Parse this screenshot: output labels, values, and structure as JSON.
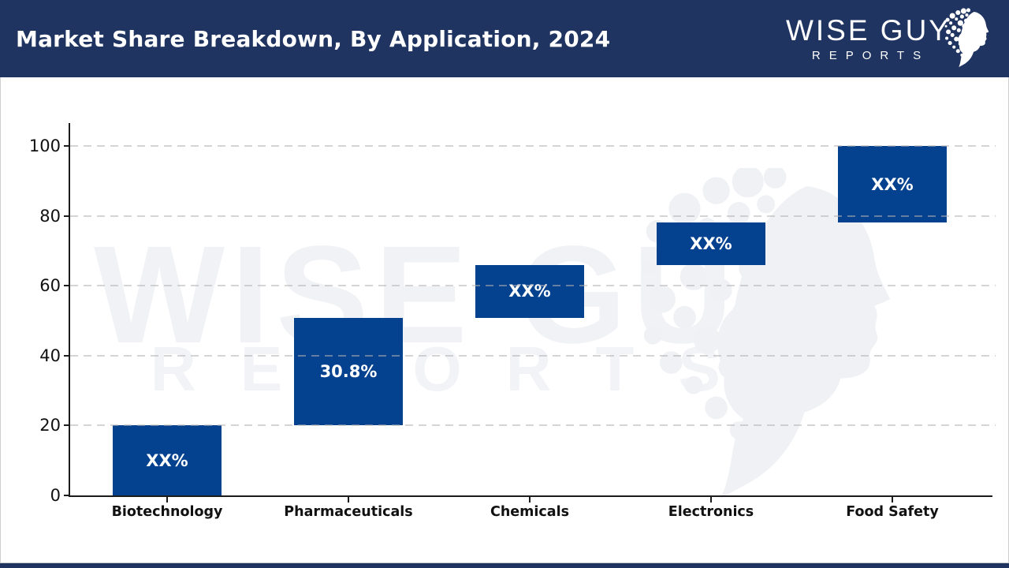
{
  "header": {
    "title": "Market Share Breakdown, By Application, 2024",
    "logo": {
      "name": "WISE GUY",
      "tagline": "REPORTS"
    }
  },
  "watermark": {
    "line1": "WISE GUY",
    "line2": "REPORTS"
  },
  "chart_data": {
    "type": "bar",
    "subtype": "floating-waterfall",
    "title": "Market Share Breakdown, By Application, 2024",
    "categories": [
      "Biotechnology",
      "Pharmaceuticals",
      "Chemicals",
      "Electronics",
      "Food Safety"
    ],
    "series": [
      {
        "name": "Market Share (%)",
        "segments": [
          {
            "category": "Biotechnology",
            "start": 0,
            "end": 20,
            "label": "XX%"
          },
          {
            "category": "Pharmaceuticals",
            "start": 20,
            "end": 50.8,
            "label": "30.8%"
          },
          {
            "category": "Chemicals",
            "start": 50.8,
            "end": 66,
            "label": "XX%"
          },
          {
            "category": "Electronics",
            "start": 66,
            "end": 78,
            "label": "XX%"
          },
          {
            "category": "Food Safety",
            "start": 78,
            "end": 100,
            "label": "XX%"
          }
        ]
      }
    ],
    "xlabel": "",
    "ylabel": "",
    "ylim": [
      0,
      100
    ],
    "yticks": [
      0,
      20,
      40,
      60,
      80,
      100
    ],
    "grid": "horizontal-dashed",
    "legend": "none"
  },
  "colors": {
    "header_bg": "#1f3461",
    "footer_bg": "#1f3461",
    "bar": "#04418f",
    "bar_label": "#ffffff",
    "grid": "#d9d9d9",
    "axis": "#1c1c1c",
    "watermark": "#f1f2f5",
    "frame": "#cfcfcf"
  }
}
